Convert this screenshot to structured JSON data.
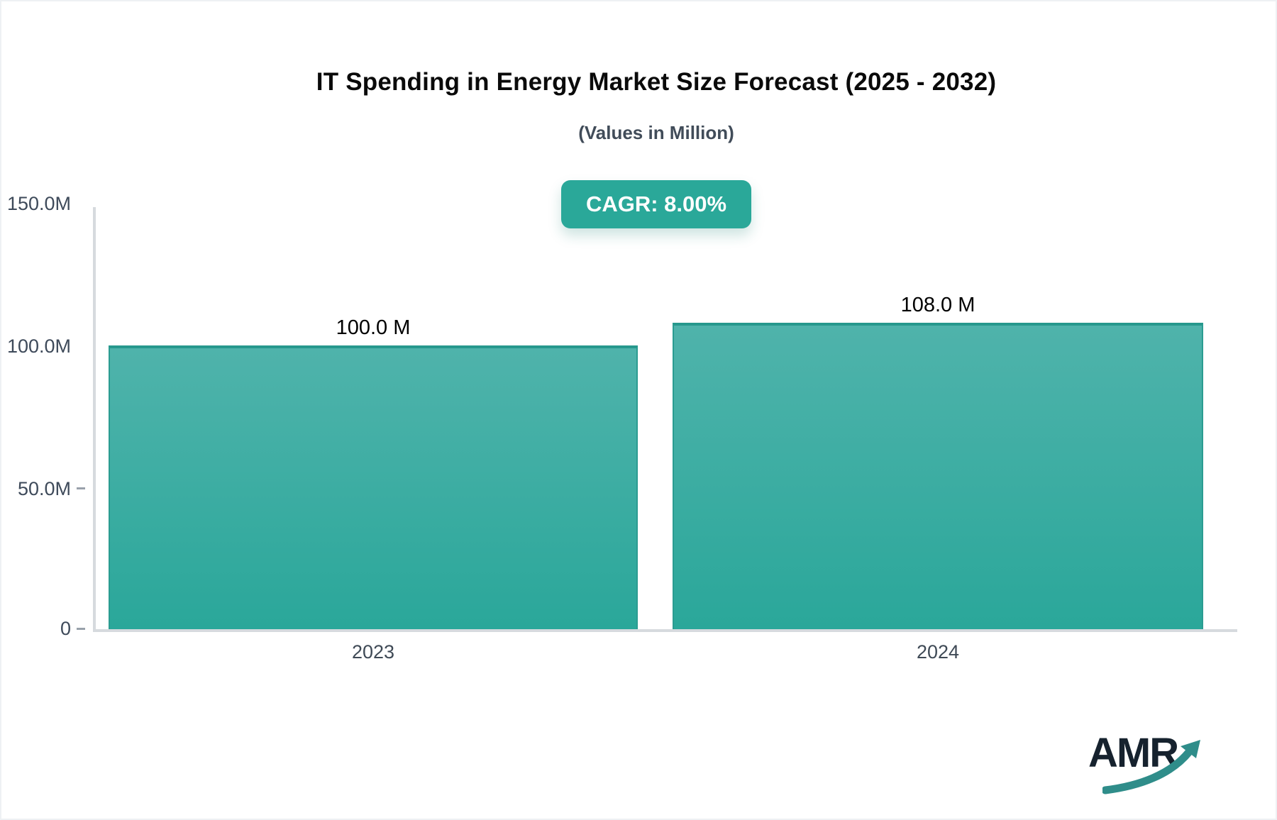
{
  "header": {
    "title": "IT Spending in Energy Market Size Forecast (2025 - 2032)",
    "subtitle": "(Values in Million)",
    "cagr_badge": "CAGR: 8.00%"
  },
  "chart_data": {
    "type": "bar",
    "categories": [
      "2023",
      "2024"
    ],
    "values": [
      100.0,
      108.0
    ],
    "value_labels": [
      "100.0 M",
      "108.0 M"
    ],
    "ylim": [
      0,
      150
    ],
    "ytick_labels": [
      "150.0M",
      "100.0M",
      "50.0M",
      "0"
    ],
    "grid": false,
    "legend": false,
    "units": "Million",
    "cagr_percent": 8.0,
    "colors": {
      "bar_gradient_top": "#4FB3AB",
      "bar_gradient_bottom": "#2AA79A",
      "bar_border": "#2B9C91",
      "badge_background": "#2AA899",
      "axis_line": "#D6DADE",
      "tick_label": "#3E4A5A",
      "logo_arrow": "#2F8D8A"
    }
  },
  "footer": {
    "logo_text": "AMR"
  }
}
